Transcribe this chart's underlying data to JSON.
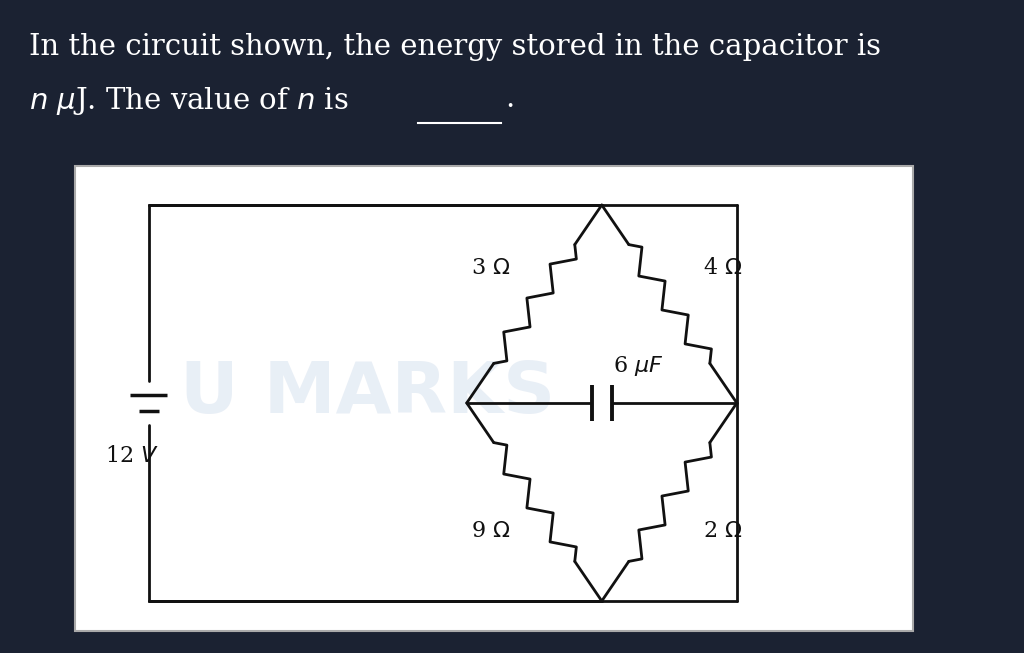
{
  "bg_color": "#1b2232",
  "panel_bg": "#ffffff",
  "panel_edge": "#aaaaaa",
  "text_color": "#ffffff",
  "circuit_color": "#111111",
  "title_line1": "In the circuit shown, the energy stored in the capacitor is",
  "title_line2_prefix": "$n$ μJ. The value of $n$ is      .",
  "title_fontsize": 21,
  "lw": 2.0
}
